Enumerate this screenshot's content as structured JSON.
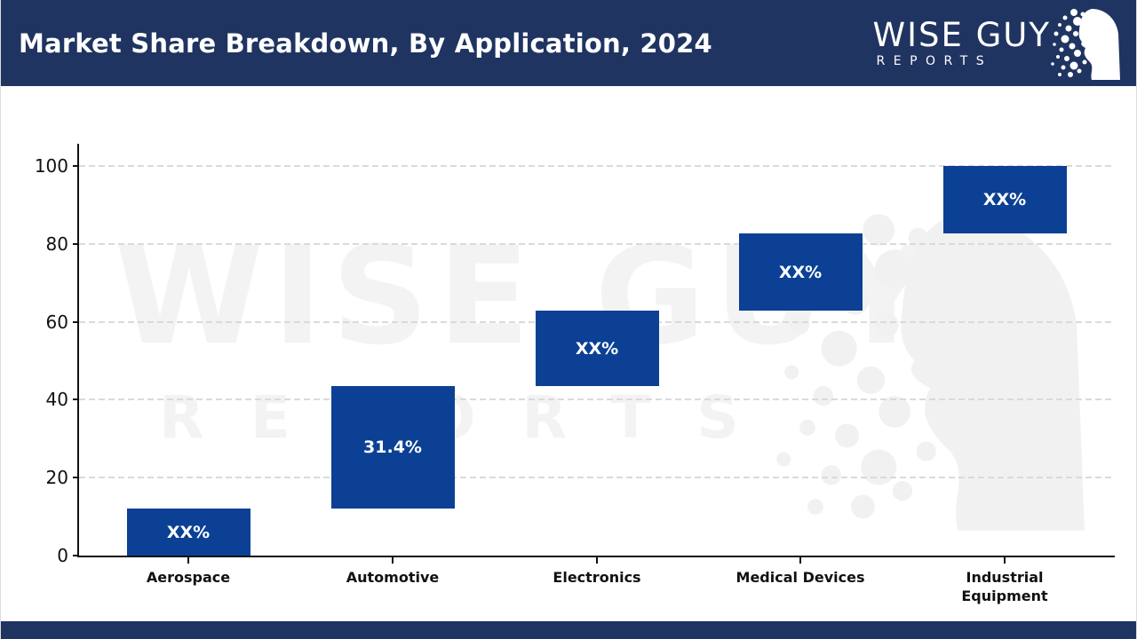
{
  "header": {
    "title": "Market Share Breakdown, By Application, 2024",
    "bg_color": "#1f3461",
    "logo": {
      "line1": "WISE GUY",
      "line2": "REPORTS"
    }
  },
  "watermark": {
    "line1": "WISE GUY",
    "line2": "REPORTS"
  },
  "footer": {
    "bg_color": "#1f3461"
  },
  "chart_data": {
    "type": "bar",
    "variant": "floating-waterfall",
    "title": "Market Share Breakdown, By Application, 2024",
    "categories": [
      "Aerospace",
      "Automotive",
      "Electronics",
      "Medical Devices",
      "Industrial Equipment"
    ],
    "series": [
      {
        "name": "Market Share",
        "segments": [
          {
            "category": "Aerospace",
            "from": 0,
            "to": 12,
            "label": "XX%"
          },
          {
            "category": "Automotive",
            "from": 12,
            "to": 43.4,
            "label": "31.4%"
          },
          {
            "category": "Electronics",
            "from": 43.4,
            "to": 62.8,
            "label": "XX%"
          },
          {
            "category": "Medical Devices",
            "from": 62.8,
            "to": 82.7,
            "label": "XX%"
          },
          {
            "category": "Industrial Equipment",
            "from": 82.7,
            "to": 100,
            "label": "XX%"
          }
        ]
      }
    ],
    "yticks": [
      "0",
      "20",
      "40",
      "60",
      "80",
      "100"
    ],
    "ylim": [
      0,
      105
    ],
    "xlabel": "",
    "ylabel": "",
    "bar_color": "#0b4094",
    "bar_label_color": "#ffffff",
    "grid": "horizontal-dashed",
    "legend": "none"
  }
}
